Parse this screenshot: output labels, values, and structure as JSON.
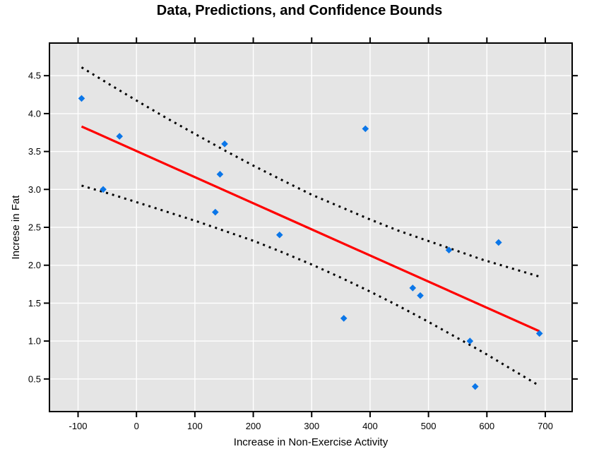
{
  "figure": {
    "title": "Data, Predictions, and Confidence Bounds",
    "xlabel": "Increase in Non-Exercise Activity",
    "ylabel": "Increse in Fat"
  },
  "chart_data": {
    "type": "scatter",
    "title": "Data, Predictions, and Confidence Bounds",
    "xlabel": "Increase in Non-Exercise Activity",
    "ylabel": "Increse in Fat",
    "xlim": [
      -149,
      746
    ],
    "ylim": [
      0.07,
      4.93
    ],
    "x_ticks": [
      -100,
      0,
      100,
      200,
      300,
      400,
      500,
      600,
      700
    ],
    "x_tick_labels": [
      "-100",
      "0",
      "100",
      "200",
      "300",
      "400",
      "500",
      "600",
      "700"
    ],
    "y_ticks": [
      0.5,
      1.0,
      1.5,
      2.0,
      2.5,
      3.0,
      3.5,
      4.0,
      4.5
    ],
    "y_tick_labels": [
      "0.5",
      "1.0",
      "1.5",
      "2.0",
      "2.5",
      "3.0",
      "3.5",
      "4.0",
      "4.5"
    ],
    "grid": true,
    "legend": "none",
    "colors": {
      "panel_bg": "#e5e5e5",
      "grid": "#ffffff",
      "border": "#000000",
      "point": "#0b76e8",
      "regression": "#ff0000",
      "bounds": "#000000",
      "text": "#000000"
    },
    "points": {
      "x": [
        -94,
        -57,
        -29,
        135,
        143,
        151,
        245,
        355,
        392,
        473,
        486,
        535,
        571,
        580,
        620,
        690
      ],
      "y": [
        4.2,
        3.0,
        3.7,
        2.7,
        3.2,
        3.6,
        2.4,
        1.3,
        3.8,
        1.7,
        1.6,
        2.2,
        1.0,
        0.4,
        2.3,
        1.1
      ]
    },
    "regression_line": {
      "x1": -94,
      "y1": 3.83,
      "x2": 690,
      "y2": 1.13
    },
    "upper_bound": [
      [
        -94,
        4.61
      ],
      [
        -45,
        4.38
      ],
      [
        5,
        4.15
      ],
      [
        54,
        3.93
      ],
      [
        103,
        3.72
      ],
      [
        152,
        3.51
      ],
      [
        201,
        3.31
      ],
      [
        250,
        3.12
      ],
      [
        300,
        2.93
      ],
      [
        349,
        2.77
      ],
      [
        398,
        2.61
      ],
      [
        447,
        2.46
      ],
      [
        496,
        2.33
      ],
      [
        545,
        2.2
      ],
      [
        594,
        2.07
      ],
      [
        642,
        1.96
      ],
      [
        690,
        1.85
      ]
    ],
    "lower_bound": [
      [
        -94,
        3.05
      ],
      [
        -45,
        2.94
      ],
      [
        5,
        2.82
      ],
      [
        54,
        2.7
      ],
      [
        103,
        2.58
      ],
      [
        152,
        2.45
      ],
      [
        201,
        2.32
      ],
      [
        250,
        2.17
      ],
      [
        300,
        2.01
      ],
      [
        349,
        1.84
      ],
      [
        398,
        1.66
      ],
      [
        447,
        1.47
      ],
      [
        496,
        1.27
      ],
      [
        545,
        1.06
      ],
      [
        594,
        0.85
      ],
      [
        642,
        0.63
      ],
      [
        690,
        0.41
      ]
    ]
  }
}
